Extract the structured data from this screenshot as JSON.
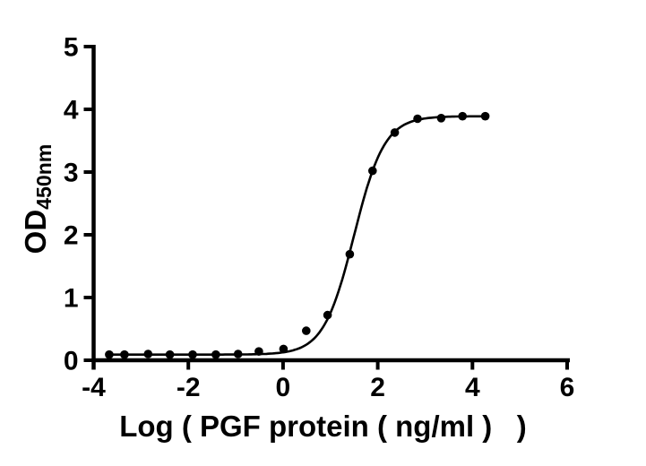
{
  "chart_data": {
    "type": "scatter",
    "title": "",
    "xlabel": "Log ( PGF protein ( ng/ml )   )",
    "ylabel_main": "OD",
    "ylabel_sub": "450nm",
    "xlim": [
      -4,
      6
    ],
    "ylim": [
      0,
      5
    ],
    "x_ticks": [
      -4,
      -2,
      0,
      2,
      4,
      6
    ],
    "y_ticks": [
      0,
      1,
      2,
      3,
      4,
      5
    ],
    "grid": false,
    "legend": "none",
    "points": {
      "x": [
        -3.67,
        -3.35,
        -2.85,
        -2.39,
        -1.91,
        -1.42,
        -0.95,
        -0.51,
        0.01,
        0.49,
        0.94,
        1.41,
        1.89,
        2.36,
        2.84,
        3.34,
        3.79,
        4.27
      ],
      "y": [
        0.09,
        0.09,
        0.1,
        0.09,
        0.09,
        0.09,
        0.1,
        0.14,
        0.18,
        0.47,
        0.72,
        1.69,
        3.02,
        3.63,
        3.85,
        3.86,
        3.89,
        3.89
      ]
    },
    "fit_curve_4pl": {
      "bottom": 0.09,
      "top": 3.89,
      "log_ec50": 1.5,
      "hill": 1.35,
      "x_start": -3.67,
      "x_end": 4.27
    },
    "colors": {
      "axis": "#000000",
      "points": "#000000",
      "curve": "#000000",
      "background": "#ffffff",
      "text": "#000000"
    }
  }
}
